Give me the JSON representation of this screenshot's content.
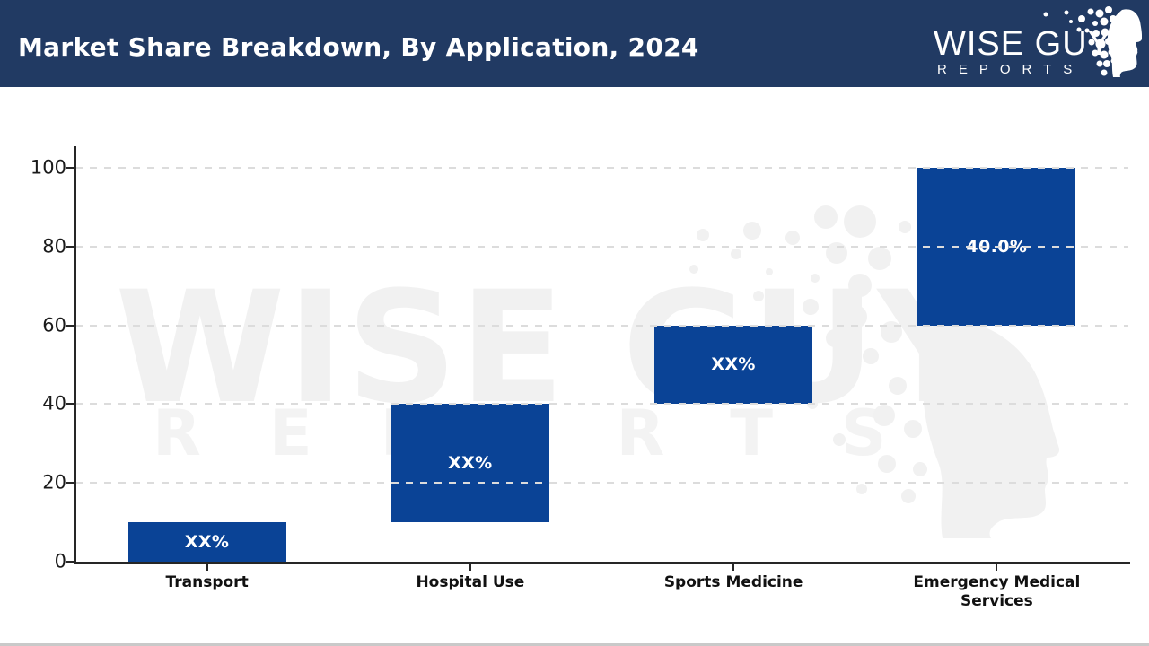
{
  "header": {
    "title": "Market Share Breakdown, By Application, 2024",
    "logo": {
      "line1": "WISE GUY",
      "line2": "REPORTS"
    },
    "bg_color": "#213a63"
  },
  "watermark": {
    "line1": "WISE GUY",
    "line2": "REPORTS"
  },
  "chart_data": {
    "type": "bar",
    "subtype": "waterfall-stacked",
    "title": "Market Share Breakdown, By Application, 2024",
    "categories": [
      "Transport",
      "Hospital Use",
      "Sports Medicine",
      "Emergency Medical Services"
    ],
    "bars": [
      {
        "category": "Transport",
        "start": 0,
        "end": 10,
        "label": "XX%"
      },
      {
        "category": "Hospital Use",
        "start": 10,
        "end": 40,
        "label": "XX%"
      },
      {
        "category": "Sports Medicine",
        "start": 40,
        "end": 60,
        "label": "XX%"
      },
      {
        "category": "Emergency Medical Services",
        "start": 60,
        "end": 100,
        "label": "40.0%"
      }
    ],
    "xlabel": "",
    "ylabel": "",
    "ylim": [
      0,
      100
    ],
    "yticks": [
      0,
      20,
      40,
      60,
      80,
      100
    ],
    "grid": true,
    "grid_style": "dashed",
    "legend": false,
    "bar_color": "#0a4396",
    "axis_color": "#262626",
    "grid_color": "#dcdcdc"
  }
}
